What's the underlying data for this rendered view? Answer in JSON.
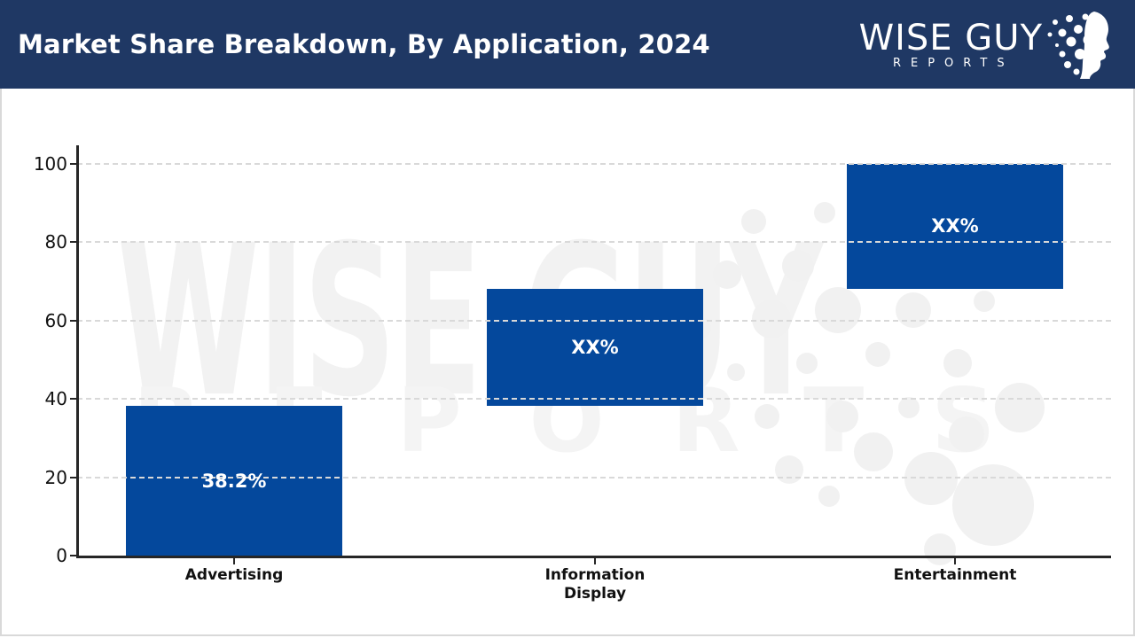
{
  "header": {
    "title": "Market Share Breakdown, By Application, 2024",
    "bg_color": "#1f3864",
    "logo": {
      "line1": "WISE GUY",
      "line2": "REPORTS"
    }
  },
  "watermark": {
    "line1": "WISE GUY",
    "line2": "REPORTS"
  },
  "chart_data": {
    "type": "bar",
    "variant": "waterfall",
    "title": "Market Share Breakdown, By Application, 2024",
    "categories": [
      "Advertising",
      "Information Display",
      "Entertainment"
    ],
    "bars": [
      {
        "category": "Advertising",
        "tick_lines": [
          "Advertising"
        ],
        "start": 0,
        "end": 38.2,
        "label": "38.2%"
      },
      {
        "category": "Information Display",
        "tick_lines": [
          "Information",
          "Display"
        ],
        "start": 38.2,
        "end": 68.2,
        "label": "XX%"
      },
      {
        "category": "Entertainment",
        "tick_lines": [
          "Entertainment"
        ],
        "start": 68.2,
        "end": 100,
        "label": "XX%"
      }
    ],
    "ylim": [
      0,
      100
    ],
    "yticks": [
      0,
      20,
      40,
      60,
      80,
      100
    ],
    "xlabel": "",
    "ylabel": "",
    "grid": {
      "horizontal": true,
      "style": "dashed",
      "color": "#d9d9d9",
      "above_bars": true
    },
    "legend": "none",
    "bar_color": "#04489c",
    "bar_label_color": "#ffffff",
    "axis_color": "#262626"
  }
}
